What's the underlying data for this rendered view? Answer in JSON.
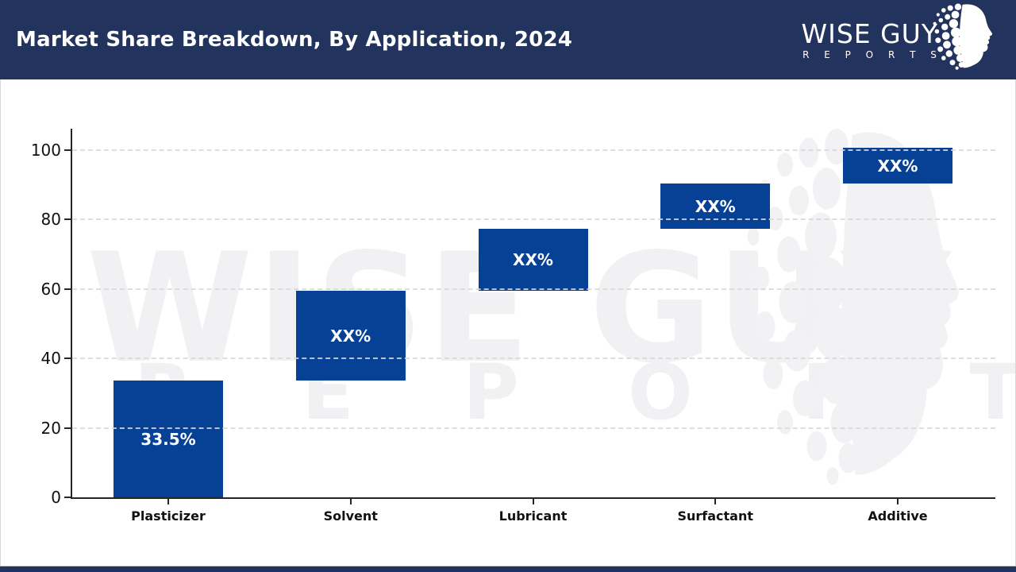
{
  "header": {
    "title": "Market Share Breakdown, By Application, 2024",
    "logo": {
      "line1": "WISE GUY",
      "line2": "R E P O R T S"
    }
  },
  "watermark": {
    "line1": "WISE GUY",
    "line2": "R E P O R T S"
  },
  "colors": {
    "header_bg": "#22345d",
    "bar": "#064195",
    "grid": "#d9d9d9",
    "axis": "#262626",
    "watermark": "#f1f1f3",
    "title_text": "#ffffff",
    "bar_label_text": "#ffffff"
  },
  "chart_data": {
    "type": "bar",
    "subtype": "waterfall-stacked-progression",
    "title": "Market Share Breakdown, By Application, 2024",
    "xlabel": "",
    "ylabel": "",
    "categories": [
      "Plasticizer",
      "Solvent",
      "Lubricant",
      "Surfactant",
      "Additive"
    ],
    "bars": [
      {
        "category": "Plasticizer",
        "start": 0,
        "end": 33.5,
        "label": "33.5%"
      },
      {
        "category": "Solvent",
        "start": 33.5,
        "end": 59.5,
        "label": "XX%"
      },
      {
        "category": "Lubricant",
        "start": 59.5,
        "end": 77.3,
        "label": "XX%"
      },
      {
        "category": "Surfactant",
        "start": 77.3,
        "end": 90.2,
        "label": "XX%"
      },
      {
        "category": "Additive",
        "start": 90.2,
        "end": 100.5,
        "label": "XX%"
      }
    ],
    "yticks": [
      0,
      20,
      40,
      60,
      80,
      100
    ],
    "ylim": [
      0,
      105
    ],
    "grid": "horizontal dashed, drawn above bars",
    "legend": "none"
  }
}
